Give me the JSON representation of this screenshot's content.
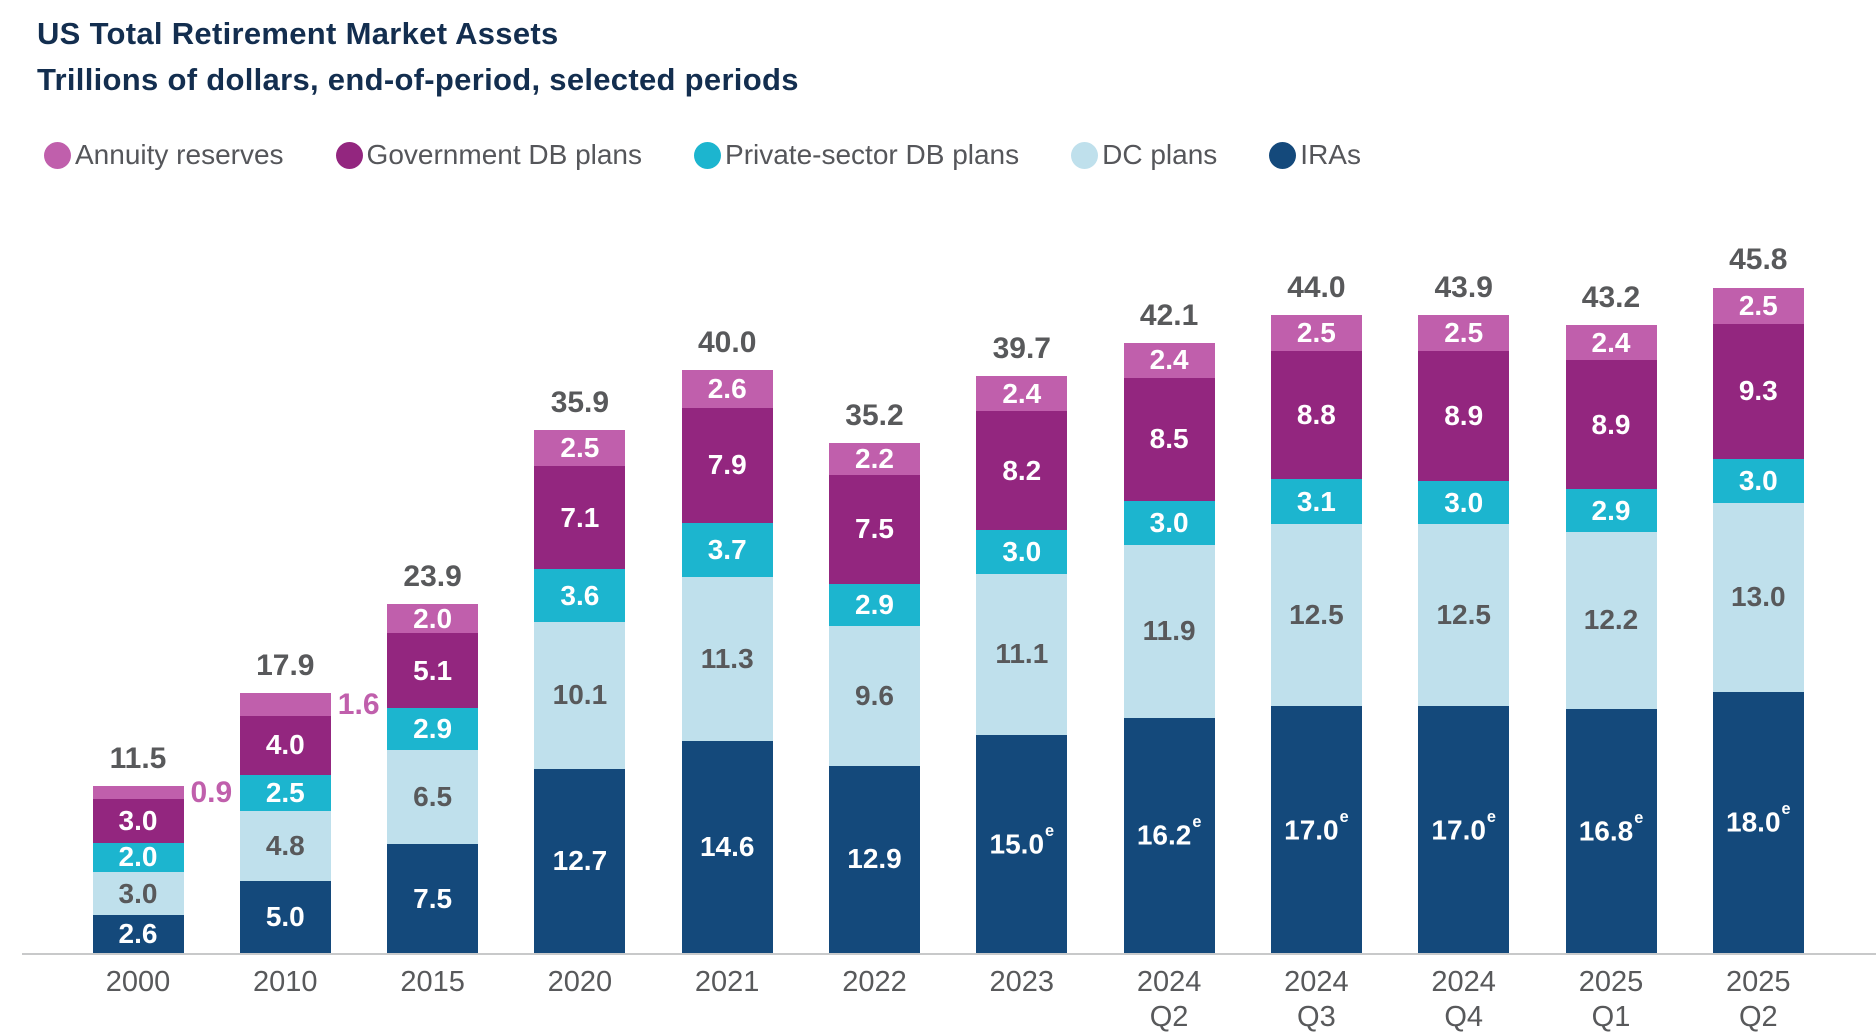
{
  "header": {
    "title": "US Total Retirement Market Assets",
    "subtitle": "Trillions of dollars, end-of-period, selected periods"
  },
  "colors": {
    "title_navy": "#132E4F",
    "label_gray": "#58595B",
    "axis_line": "#C8C9CA",
    "annuity_pink": "#C05FAC",
    "government_purple": "#93267F",
    "private_db_cyan": "#1CB5CF",
    "dc_light_blue": "#BFE0EC",
    "ira_navy": "#14497B"
  },
  "legend": {
    "items": [
      {
        "label": "Annuity reserves",
        "color": "#C05FAC"
      },
      {
        "label": "Government DB plans",
        "color": "#93267F"
      },
      {
        "label": "Private-sector DB plans",
        "color": "#1CB5CF"
      },
      {
        "label": "DC plans",
        "color": "#BFE0EC"
      },
      {
        "label": "IRAs",
        "color": "#14497B"
      }
    ]
  },
  "chart_data": {
    "type": "bar",
    "variant": "stacked",
    "title": "US Total Retirement Market Assets",
    "subtitle": "Trillions of dollars, end-of-period, selected periods",
    "unit": "trillions of dollars",
    "estimate_marker": "e",
    "legend_position": "top",
    "grid": false,
    "categories": [
      "2000",
      "2010",
      "2015",
      "2020",
      "2021",
      "2022",
      "2023",
      "2024 Q2",
      "2024 Q3",
      "2024 Q4",
      "2025 Q1",
      "2025 Q2"
    ],
    "totals": [
      "11.5",
      "17.9",
      "23.9",
      "35.9",
      "40.0",
      "35.2",
      "39.7",
      "42.1",
      "44.0",
      "43.9",
      "43.2",
      "45.8"
    ],
    "series": [
      {
        "name": "IRAs",
        "color": "#14497B",
        "label_color": "#FFFFFF",
        "values": [
          2.6,
          5.0,
          7.5,
          12.7,
          14.6,
          12.9,
          15.0,
          16.2,
          17.0,
          17.0,
          16.8,
          18.0
        ],
        "estimated": [
          false,
          false,
          false,
          false,
          false,
          false,
          true,
          true,
          true,
          true,
          true,
          true
        ]
      },
      {
        "name": "DC plans",
        "color": "#BFE0EC",
        "label_color": "#58595B",
        "values": [
          3.0,
          4.8,
          6.5,
          10.1,
          11.3,
          9.6,
          11.1,
          11.9,
          12.5,
          12.5,
          12.2,
          13.0
        ]
      },
      {
        "name": "Private-sector DB plans",
        "color": "#1CB5CF",
        "label_color": "#FFFFFF",
        "values": [
          2.0,
          2.5,
          2.9,
          3.6,
          3.7,
          2.9,
          3.0,
          3.0,
          3.1,
          3.0,
          2.9,
          3.0
        ]
      },
      {
        "name": "Government DB plans",
        "color": "#93267F",
        "label_color": "#FFFFFF",
        "values": [
          3.0,
          4.0,
          5.1,
          7.1,
          7.9,
          7.5,
          8.2,
          8.5,
          8.8,
          8.9,
          8.9,
          9.3
        ]
      },
      {
        "name": "Annuity reserves",
        "color": "#C05FAC",
        "label_color": "#FFFFFF",
        "values": [
          0.9,
          1.6,
          2.0,
          2.5,
          2.6,
          2.2,
          2.4,
          2.4,
          2.5,
          2.5,
          2.4,
          2.5
        ],
        "outside_label": [
          true,
          true,
          false,
          false,
          false,
          false,
          false,
          false,
          false,
          false,
          false,
          false
        ]
      }
    ]
  }
}
